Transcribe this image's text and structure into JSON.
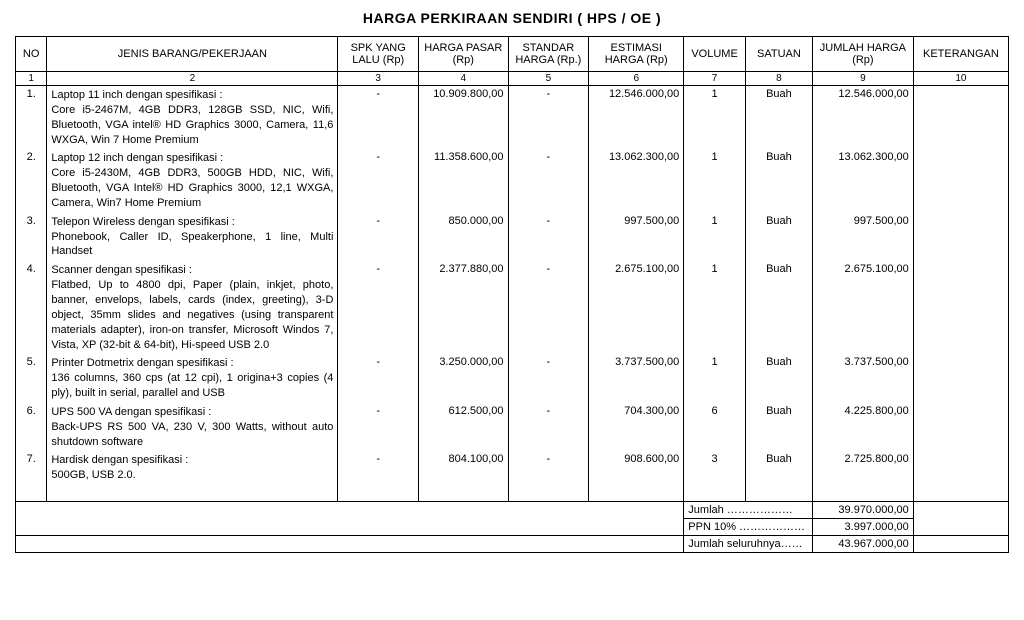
{
  "title": "HARGA PERKIRAAN SENDIRI  ( HPS / OE )",
  "headers": {
    "no": "NO",
    "desc": "JENIS BARANG/PEKERJAAN",
    "spk": "SPK YANG LALU (Rp)",
    "pasar": "HARGA PASAR (Rp)",
    "std": "STANDAR HARGA (Rp.)",
    "est": "ESTIMASI HARGA (Rp)",
    "vol": "VOLUME",
    "sat": "SATUAN",
    "jml": "JUMLAH HARGA (Rp)",
    "ket": "KETERANGAN"
  },
  "colnums": [
    "1",
    "2",
    "3",
    "4",
    "5",
    "6",
    "7",
    "8",
    "9",
    "10"
  ],
  "rows": [
    {
      "no": "1.",
      "desc": "Laptop 11 inch dengan spesifikasi :\nCore i5-2467M, 4GB DDR3, 128GB SSD, NIC, Wifi, Bluetooth, VGA intel® HD Graphics 3000, Camera, 11,6 WXGA, Win 7 Home Premium",
      "spk": "-",
      "pasar": "10.909.800,00",
      "std": "-",
      "est": "12.546.000,00",
      "vol": "1",
      "sat": "Buah",
      "jml": "12.546.000,00",
      "ket": ""
    },
    {
      "no": "2.",
      "desc": "Laptop 12 inch dengan spesifikasi :\nCore i5-2430M, 4GB DDR3, 500GB HDD, NIC, Wifi, Bluetooth, VGA Intel® HD Graphics 3000, 12,1 WXGA, Camera, Win7 Home Premium",
      "spk": "-",
      "pasar": "11.358.600,00",
      "std": "-",
      "est": "13.062.300,00",
      "vol": "1",
      "sat": "Buah",
      "jml": "13.062.300,00",
      "ket": ""
    },
    {
      "no": "3.",
      "desc": "Telepon Wireless dengan spesifikasi :\nPhonebook, Caller ID, Speakerphone, 1 line, Multi Handset",
      "spk": "-",
      "pasar": "850.000,00",
      "std": "-",
      "est": "997.500,00",
      "vol": "1",
      "sat": "Buah",
      "jml": "997.500,00",
      "ket": ""
    },
    {
      "no": "4.",
      "desc": "Scanner dengan spesifikasi :\nFlatbed, Up to 4800 dpi, Paper (plain, inkjet, photo, banner, envelops, labels, cards (index, greeting), 3-D object, 35mm slides and negatives (using transparent materials adapter), iron-on transfer, Microsoft Windos 7, Vista, XP (32-bit & 64-bit), Hi-speed USB 2.0",
      "spk": "-",
      "pasar": "2.377.880,00",
      "std": "-",
      "est": "2.675.100,00",
      "vol": "1",
      "sat": "Buah",
      "jml": "2.675.100,00",
      "ket": ""
    },
    {
      "no": "5.",
      "desc": "Printer Dotmetrix dengan spesifikasi :\n136 columns, 360 cps (at 12 cpi), 1 origina+3 copies (4 ply), built in serial, parallel and USB",
      "spk": "-",
      "pasar": "3.250.000,00",
      "std": "-",
      "est": "3.737.500,00",
      "vol": "1",
      "sat": "Buah",
      "jml": "3.737.500,00",
      "ket": ""
    },
    {
      "no": "6.",
      "desc": "UPS 500 VA dengan spesifikasi :\nBack-UPS RS 500 VA, 230 V, 300 Watts, without auto shutdown software",
      "spk": "-",
      "pasar": "612.500,00",
      "std": "-",
      "est": "704.300,00",
      "vol": "6",
      "sat": "Buah",
      "jml": "4.225.800,00",
      "ket": ""
    },
    {
      "no": "7.",
      "desc": "Hardisk dengan spesifikasi :\n500GB, USB 2.0.",
      "spk": "-",
      "pasar": "804.100,00",
      "std": "-",
      "est": "908.600,00",
      "vol": "3",
      "sat": "Buah",
      "jml": "2.725.800,00",
      "ket": ""
    }
  ],
  "summary": {
    "jumlah_label": "Jumlah",
    "jumlah_val": "39.970.000,00",
    "ppn_label": "PPN 10%",
    "ppn_val": "3.997.000,00",
    "total_label": "Jumlah seluruhnya",
    "total_val": "43.967.000,00"
  }
}
